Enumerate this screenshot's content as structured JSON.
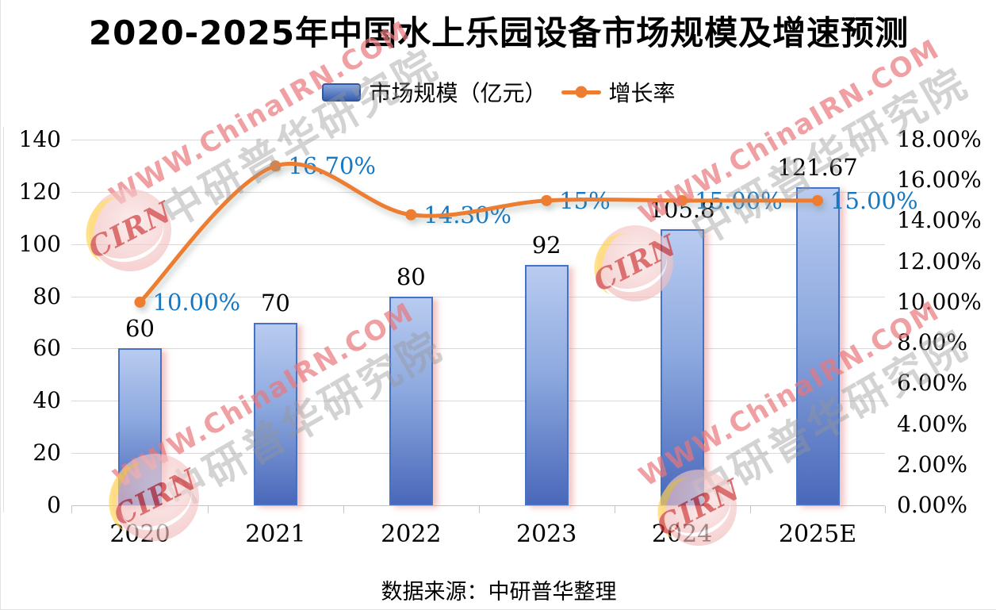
{
  "title": "2020-2025年中国水上乐园设备市场规模及增速预测",
  "legend": {
    "series1": "市场规模（亿元）",
    "series2": "增长率"
  },
  "source": "数据来源：中研普华整理",
  "watermark": {
    "url_text": "WWW.ChinaIRN.COM",
    "org_text": "中研普华研究院",
    "logo_text": "CIRN"
  },
  "colors": {
    "bar_top": "#b9cbf0",
    "bar_bottom": "#4a68ba",
    "bar_border": "#4472c4",
    "line": "#ED7D31",
    "pct_label": "#1778C2",
    "gridline": "#d9d9d9"
  },
  "chart_data": {
    "type": "bar",
    "subtype": "bar+line combo",
    "categories": [
      "2020",
      "2021",
      "2022",
      "2023",
      "2024",
      "2025E"
    ],
    "series": [
      {
        "name": "市场规模（亿元）",
        "type": "bar",
        "axis": "left",
        "values": [
          60,
          70,
          80,
          92,
          105.8,
          121.67
        ],
        "labels": [
          "60",
          "70",
          "80",
          "92",
          "105.8",
          "121.67"
        ]
      },
      {
        "name": "增长率",
        "type": "line",
        "axis": "right",
        "values": [
          10.0,
          16.7,
          14.3,
          15.0,
          15.0,
          15.0
        ],
        "labels": [
          "10.00%",
          "16.70%",
          "14.30%",
          "15%",
          "15.00%",
          "15.00%"
        ]
      }
    ],
    "left_axis": {
      "min": 0,
      "max": 140,
      "step": 20,
      "ticks": [
        "0",
        "20",
        "40",
        "60",
        "80",
        "100",
        "120",
        "140"
      ]
    },
    "right_axis": {
      "min": 0,
      "max": 18,
      "step": 2,
      "ticks": [
        "0.00%",
        "2.00%",
        "4.00%",
        "6.00%",
        "8.00%",
        "10.00%",
        "12.00%",
        "14.00%",
        "16.00%",
        "18.00%"
      ]
    },
    "grid": true,
    "legend_position": "top"
  }
}
